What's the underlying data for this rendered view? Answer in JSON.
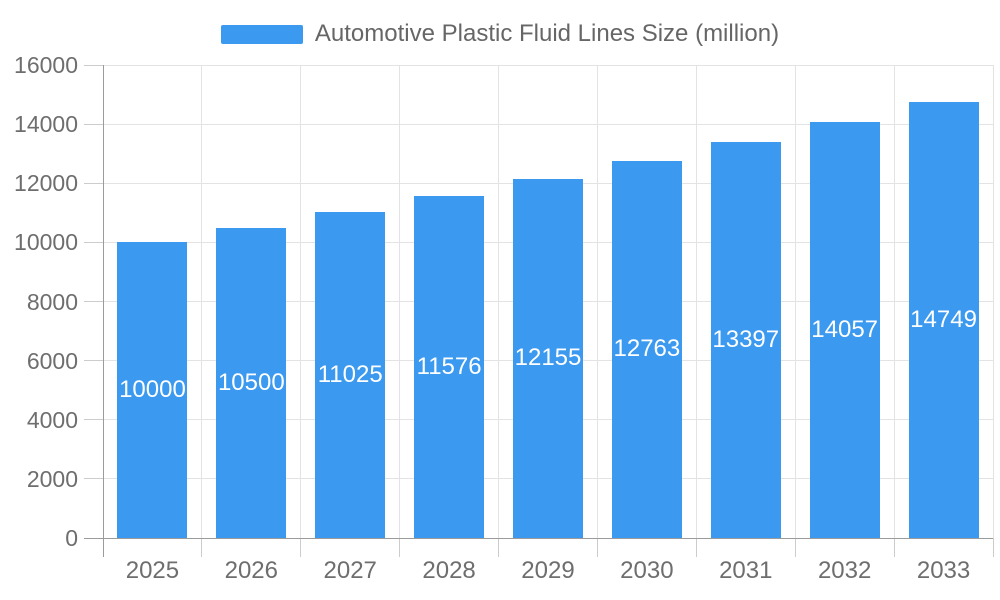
{
  "legend": {
    "label": "Automotive Plastic Fluid Lines Size (million)"
  },
  "chart_data": {
    "type": "bar",
    "title": "Automotive Plastic Fluid Lines Size (million)",
    "series_name": "Automotive Plastic Fluid Lines Size (million)",
    "categories": [
      "2025",
      "2026",
      "2027",
      "2028",
      "2029",
      "2030",
      "2031",
      "2032",
      "2033"
    ],
    "values": [
      10000,
      10500,
      11025,
      11576,
      12155,
      12763,
      13397,
      14057,
      14749
    ],
    "bar_value_labels": [
      "10000",
      "10500",
      "11025",
      "11576",
      "12155",
      "12763",
      "13397",
      "14057",
      "14749"
    ],
    "xlabel": "",
    "ylabel": "",
    "ylim": [
      0,
      16000
    ],
    "ytick_step": 2000,
    "ytick_labels": [
      "0",
      "2000",
      "4000",
      "6000",
      "8000",
      "10000",
      "12000",
      "14000",
      "16000"
    ],
    "grid": true,
    "legend_position": "top-center",
    "bar_labels_position": "inside-center"
  },
  "colors": {
    "bar": "#3B99F0",
    "bar_label": "#FFFFFF",
    "grid_line": "#E3E3E3",
    "axis_line": "#9B9B9B",
    "tick_line": "#CCCCCC",
    "axis_text": "#6E6E6E",
    "legend_text": "#666666",
    "background": "#FFFFFF"
  }
}
